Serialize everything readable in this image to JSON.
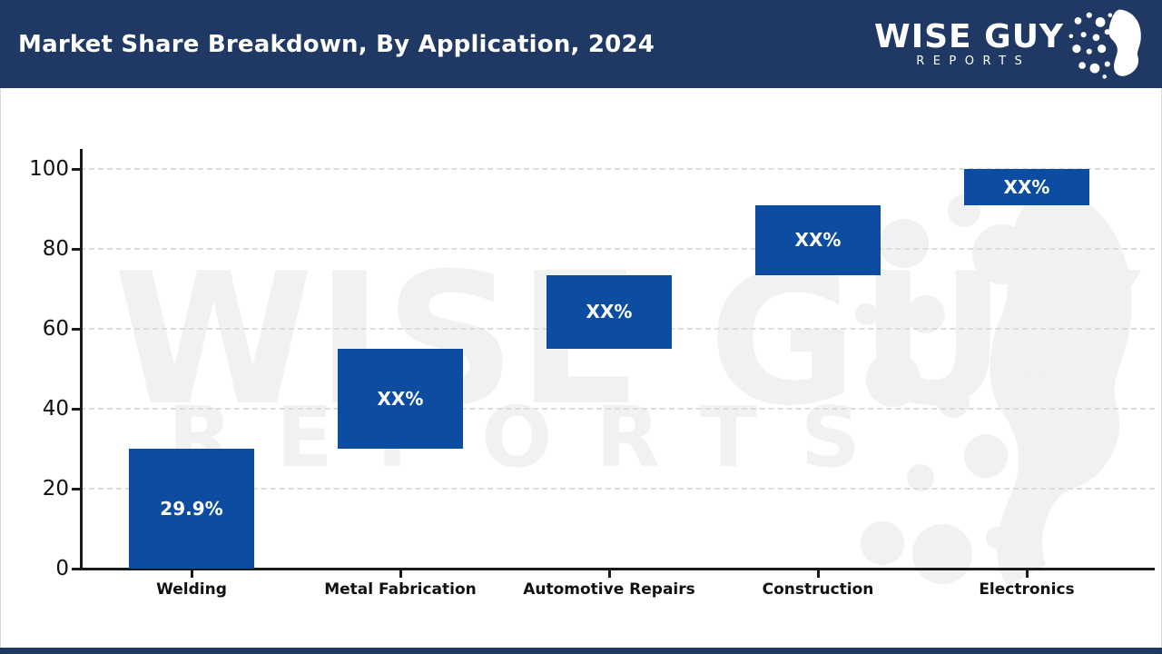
{
  "page": {
    "background": "#ffffff",
    "edge_border_color": "#d9d9d9"
  },
  "header": {
    "bg_color": "#1f3864",
    "title": "Market Share Breakdown, By Application, 2024",
    "logo": {
      "line1": "WISE GUY",
      "line2": "REPORTS"
    }
  },
  "footer": {
    "bg_color": "#1f3864"
  },
  "watermark": {
    "line1": "WISE GUY",
    "line2": "REPORTS"
  },
  "chart_data": {
    "type": "bar",
    "variant": "floating-segment-waterfall",
    "title": "Market Share Breakdown, By Application, 2024",
    "categories": [
      "Welding",
      "Metal Fabrication",
      "Automotive Repairs",
      "Construction",
      "Electronics"
    ],
    "segments": [
      {
        "category": "Welding",
        "start": 0,
        "end": 29.9,
        "label": "29.9%"
      },
      {
        "category": "Metal Fabrication",
        "start": 29.9,
        "end": 55,
        "label": "XX%"
      },
      {
        "category": "Automotive Repairs",
        "start": 55,
        "end": 73.5,
        "label": "XX%"
      },
      {
        "category": "Construction",
        "start": 73.5,
        "end": 91,
        "label": "XX%"
      },
      {
        "category": "Electronics",
        "start": 91,
        "end": 100,
        "label": "XX%"
      }
    ],
    "yticks": [
      0,
      20,
      40,
      60,
      80,
      100
    ],
    "ylim": [
      0,
      105
    ],
    "xlabel": "",
    "ylabel": "",
    "grid": "horizontal-dashed",
    "legend": "none",
    "bar_color": "#0c4da1",
    "bar_label_color": "#ffffff",
    "axis_color": "#1a1a1a",
    "grid_color": "#dcdcdc"
  }
}
